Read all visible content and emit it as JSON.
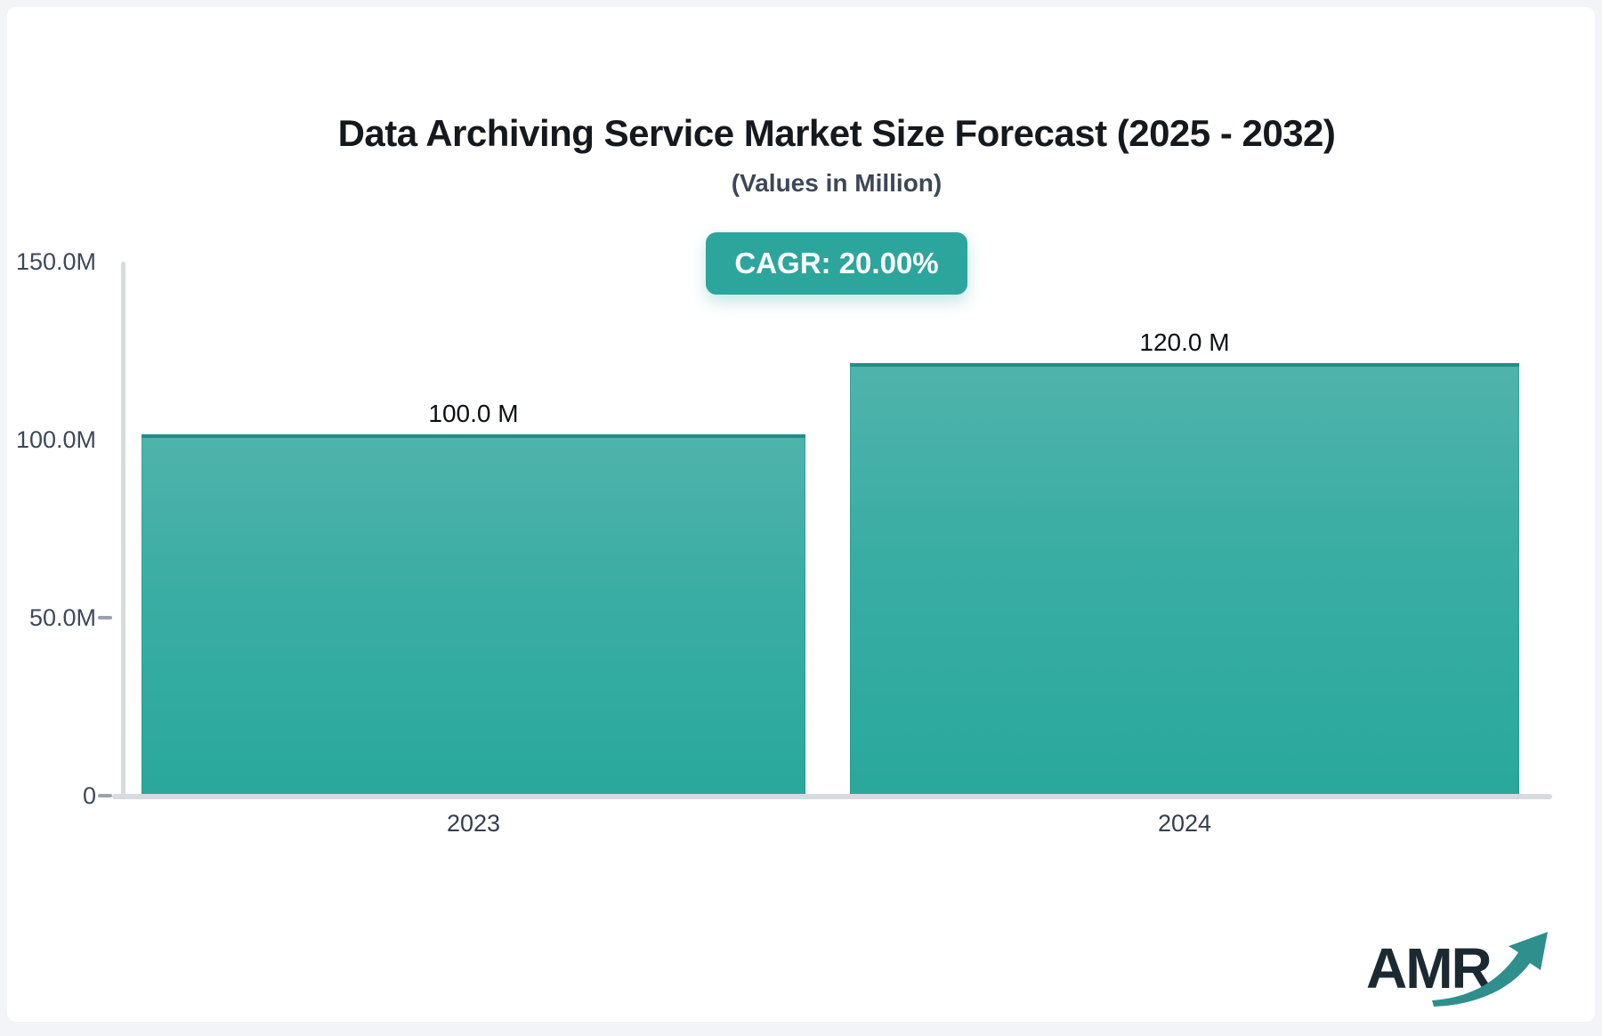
{
  "page": {
    "background": "#F2F4F7",
    "card_background": "#FFFFFF"
  },
  "header": {
    "title": "Data Archiving Service Market Size Forecast (2025 - 2032)",
    "subtitle": "(Values in Million)",
    "cagr_badge": "CAGR: 20.00%"
  },
  "chart_data": {
    "type": "bar",
    "title": "Data Archiving Service Market Size Forecast (2025 - 2032)",
    "subtitle": "(Values in Million)",
    "unit": "Million",
    "categories": [
      "2023",
      "2024"
    ],
    "values": [
      100.0,
      120.0
    ],
    "value_labels": [
      "100.0 M",
      "120.0 M"
    ],
    "ylim": [
      0,
      150
    ],
    "y_ticks": [
      {
        "label": "150.0M",
        "value": 150,
        "tick_mark": false
      },
      {
        "label": "100.0M",
        "value": 100,
        "tick_mark": false
      },
      {
        "label": "50.0M",
        "value": 50,
        "tick_mark": true
      },
      {
        "label": "0",
        "value": 0,
        "tick_mark": true
      }
    ],
    "grid": false,
    "legend": false,
    "annotations": [
      {
        "type": "badge",
        "text": "CAGR: 20.00%"
      }
    ]
  },
  "colors": {
    "accent": "#2CA69C",
    "bar_gradient_top": "#4FB3AB",
    "bar_gradient_bottom": "#2AA89C",
    "bar_top_border": "#1F8E85",
    "axis_line": "#D7DADE",
    "tick_mark": "#9AA2AD",
    "axis_label": "#3F4859",
    "title_text": "#15181C",
    "badge_background": "#2CA69C",
    "badge_text": "#FFFFFF"
  },
  "branding": {
    "logo_text": "AMR",
    "logo_text_color": "#1B2A32",
    "arrow_icon": "trend-up-arrow",
    "arrow_color": "#2E8F8C"
  }
}
